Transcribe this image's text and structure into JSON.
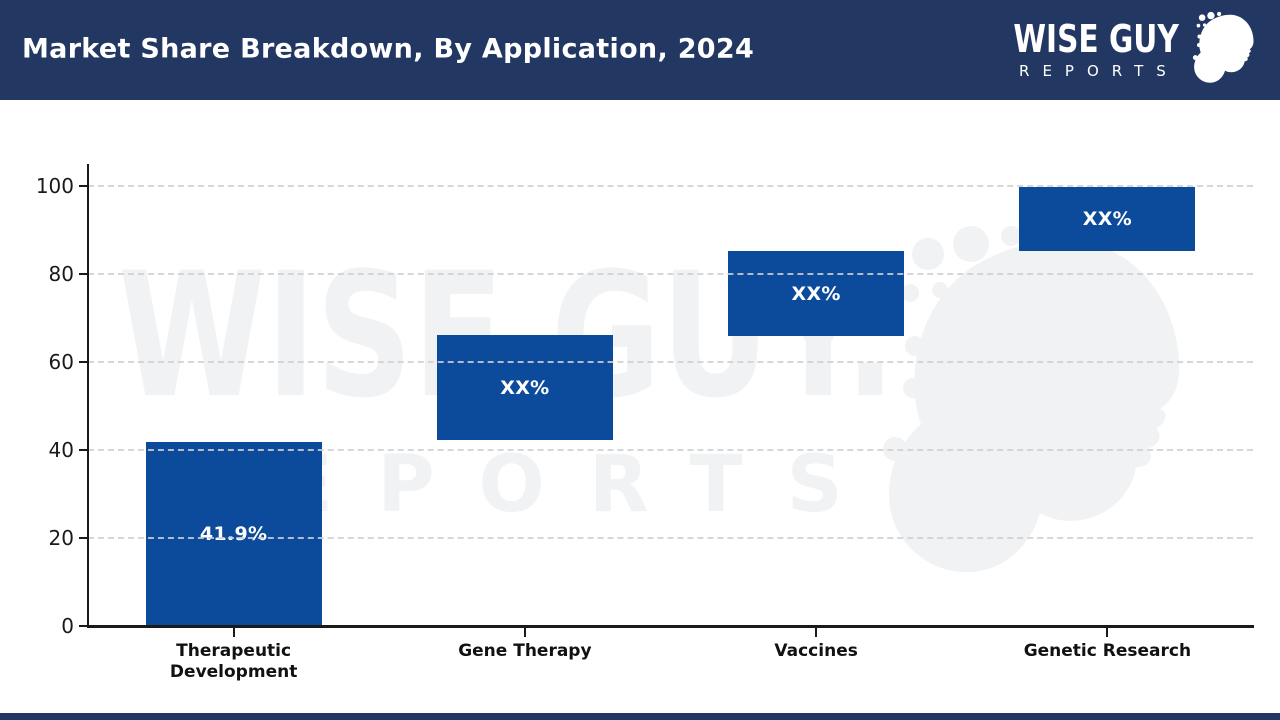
{
  "header": {
    "title": "Market Share Breakdown, By Application, 2024",
    "bg_color": "#223862",
    "logo": {
      "line1": "WISE GUY",
      "line2": "REPORTS",
      "face_icon": "dotted-head-profile"
    }
  },
  "watermark": {
    "line1": "WISE GUY.",
    "line2": "REPORTS.",
    "color": "#f1f2f4"
  },
  "chart_data": {
    "type": "bar",
    "subtype": "waterfall",
    "title": "Market Share Breakdown, By Application, 2024",
    "categories": [
      "Therapeutic Development",
      "Gene Therapy",
      "Vaccines",
      "Genetic Research"
    ],
    "series": [
      {
        "name": "Market share (%)",
        "segments": [
          {
            "category": "Therapeutic Development",
            "base": 0,
            "top": 41.9,
            "label": "41.9%"
          },
          {
            "category": "Gene Therapy",
            "base": 42.3,
            "top": 66.1,
            "label": "XX%"
          },
          {
            "category": "Vaccines",
            "base": 65.9,
            "top": 85.2,
            "label": "XX%"
          },
          {
            "category": "Genetic Research",
            "base": 85.2,
            "top": 99.7,
            "label": "XX%"
          }
        ]
      }
    ],
    "xlabel": "",
    "ylabel": "",
    "ylim": [
      0,
      105
    ],
    "yticks": [
      0,
      20,
      40,
      60,
      80,
      100
    ],
    "grid": "horizontal-dashed",
    "legend_position": "none",
    "bar_color": "#0c4a9c",
    "bar_label_color": "#ffffff",
    "axis_color": "#1a1a1a",
    "gridline_color": "#d0d0d0"
  }
}
